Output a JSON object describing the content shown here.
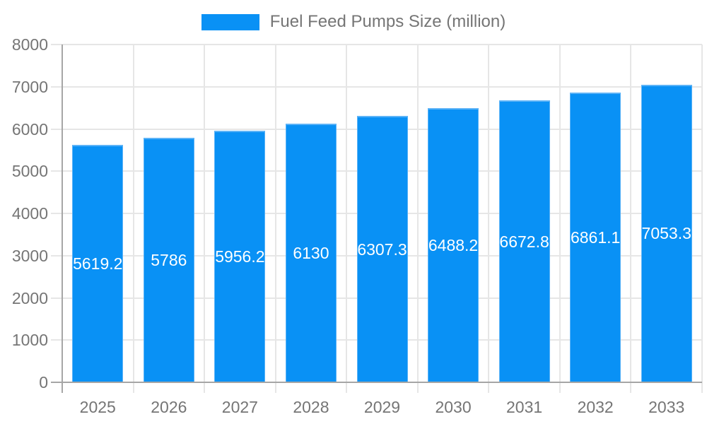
{
  "legend": {
    "label": "Fuel Feed Pumps Size (million)"
  },
  "colors": {
    "bar_fill": "#0991f5",
    "bar_border": "#5cb3f7",
    "axis_line": "#a6a6a6",
    "grid_line": "#e6e6e6",
    "tick_label": "#757575",
    "value_label": "#ffffff",
    "background": "#ffffff"
  },
  "chart_data": {
    "type": "bar",
    "title": "Fuel Feed Pumps Size (million)",
    "xlabel": "",
    "ylabel": "",
    "categories": [
      "2025",
      "2026",
      "2027",
      "2028",
      "2029",
      "2030",
      "2031",
      "2032",
      "2033"
    ],
    "values": [
      5619.2,
      5786,
      5956.2,
      6130,
      6307.3,
      6488.2,
      6672.8,
      6861.1,
      7053.3
    ],
    "value_labels": [
      "5619.2",
      "5786",
      "5956.2",
      "6130",
      "6307.3",
      "6488.2",
      "6672.8",
      "6861.1",
      "7053.3"
    ],
    "ylim": [
      0,
      8000
    ],
    "ytick_interval": 1000,
    "ytick_labels": [
      "0",
      "1000",
      "2000",
      "3000",
      "4000",
      "5000",
      "6000",
      "7000",
      "8000"
    ],
    "grid": true,
    "legend_position": "top",
    "value_label_position": "center"
  }
}
